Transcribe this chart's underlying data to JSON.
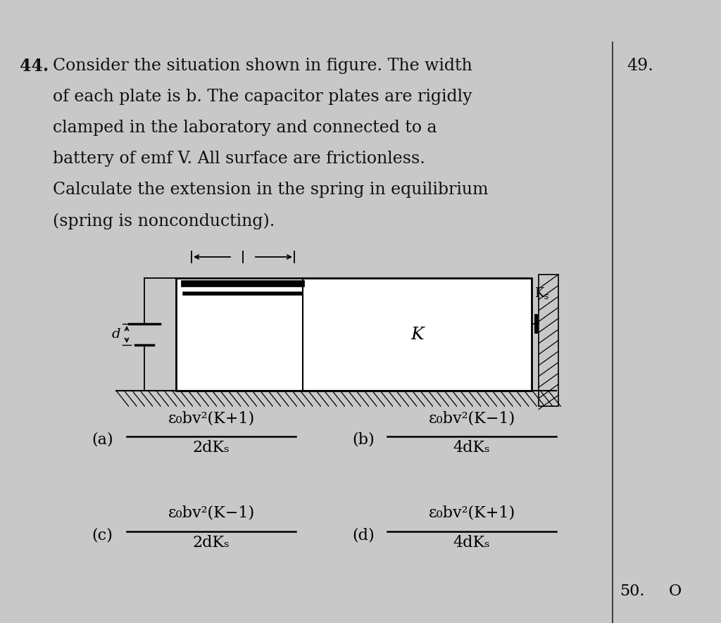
{
  "bg_color": "#c8c8c8",
  "page_color": "#d8d8d8",
  "text_color": "#111111",
  "question_number": "44.",
  "question_lines": [
    "Consider the situation shown in figure. The width",
    "of each plate is b. The capacitor plates are rigidly",
    "clamped in the laboratory and connected to a",
    "battery of emf V. All surface are frictionless.",
    "Calculate the extension in the spring in equilibrium",
    "(spring is nonconducting)."
  ],
  "side_number": "49.",
  "options": [
    {
      "label": "(a)",
      "numerator": "ε₀bv²(K+1)",
      "denominator": "2dKₛ"
    },
    {
      "label": "(b)",
      "numerator": "ε₀bv²(K−1)",
      "denominator": "4dKₛ"
    },
    {
      "label": "(c)",
      "numerator": "ε₀bv²(K−1)",
      "denominator": "2dKₛ"
    },
    {
      "label": "(d)",
      "numerator": "ε₀bv²(K+1)",
      "denominator": "4dKₛ"
    }
  ],
  "bottom_number": "50.",
  "bottom_letter": "O"
}
